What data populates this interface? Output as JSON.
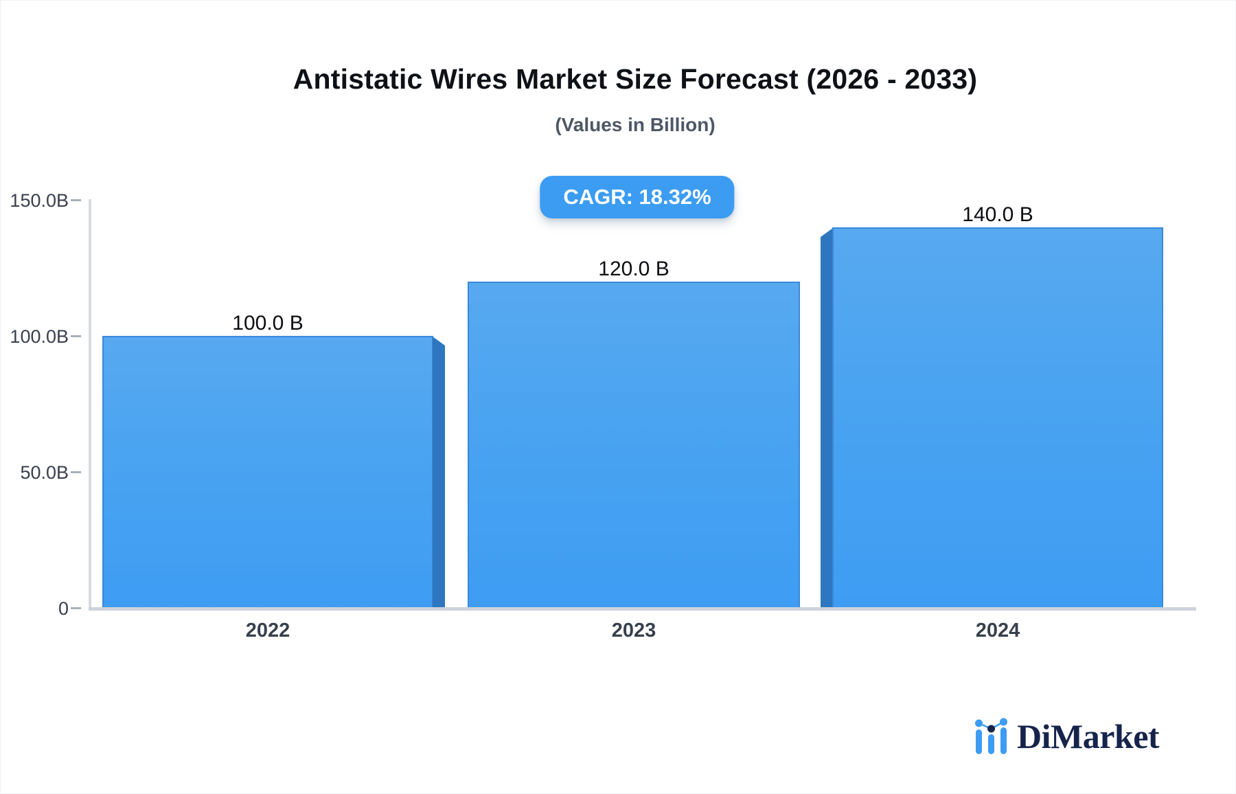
{
  "header": {
    "title": "Antistatic Wires Market Size Forecast (2026 - 2033)",
    "subtitle": "(Values in Billion)",
    "cagr_label": "CAGR: 18.32%"
  },
  "chart_data": {
    "type": "bar",
    "title": "Antistatic Wires Market Size Forecast (2026 - 2033)",
    "subtitle": "(Values in Billion)",
    "unit": "Billion",
    "cagr_percent": 18.32,
    "categories": [
      "2022",
      "2023",
      "2024"
    ],
    "values": [
      100.0,
      120.0,
      140.0
    ],
    "value_labels": [
      "100.0 B",
      "120.0 B",
      "140.0 B"
    ],
    "ylim": [
      0,
      150
    ],
    "ytick_values": [
      150,
      100,
      50,
      0
    ],
    "ytick_labels": [
      "150.0B",
      "100.0B",
      "50.0B",
      "0"
    ],
    "xlabel": "",
    "ylabel": "",
    "grid": false,
    "legend": false
  },
  "branding": {
    "logo_text": "DiMarket"
  },
  "colors": {
    "bar_fill_top": "#57a9f0",
    "bar_fill_mid": "#47a2f1",
    "bar_fill_bottom": "#3e9df3",
    "bar_side": "#2e77c0",
    "bar_stroke": "#3a88d9",
    "badge_bg": "#3b9cf2",
    "axis_line": "#d6dae0",
    "baseline": "#cdd3da",
    "title_color": "#0e1116",
    "subtitle_color": "#4d5766",
    "label_color": "#0b0d11",
    "tick_label_color": "#37404d",
    "logo_navy": "#16244c",
    "logo_blue": "#3d9cf3"
  }
}
